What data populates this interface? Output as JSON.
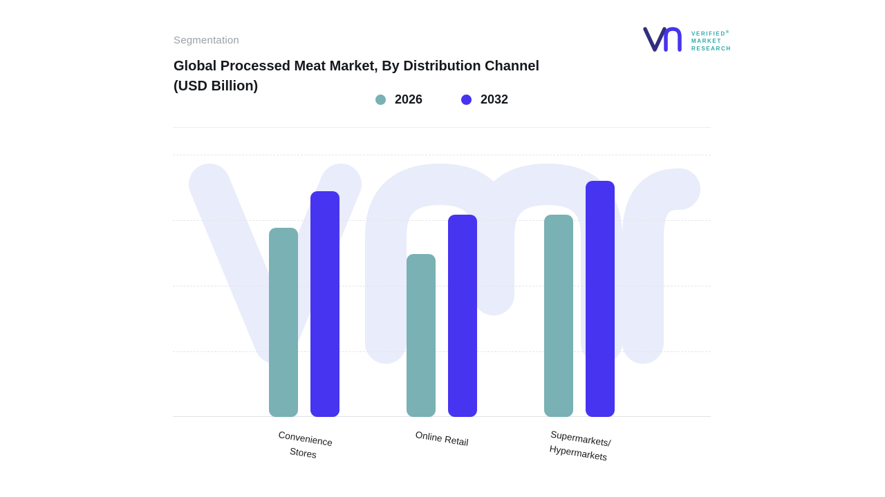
{
  "header": {
    "eyebrow": "Segmentation",
    "title": "Global Processed Meat Market, By Distribution Channel (USD Billion)"
  },
  "logo": {
    "lines": [
      "VERIFIED",
      "MARKET",
      "RESEARCH"
    ],
    "registered": "®",
    "text_color": "#2aa9ad",
    "mark_colors": {
      "v": "#312f7d",
      "arch": "#4733ee"
    }
  },
  "colors": {
    "series_2026": "#79b1b4",
    "series_2032": "#4634f0",
    "watermark": "#e9ecfa",
    "gridline": "#e4e6ea",
    "baseline": "#dfe2e6",
    "title_text": "#15181d",
    "eyebrow_text": "#9ba1a9"
  },
  "chart_data": {
    "type": "bar",
    "title": "Global Processed Meat Market, By Distribution Channel (USD Billion)",
    "xlabel": "Distribution Channel",
    "ylabel": "USD Billion",
    "categories": [
      "Convenience\nStores",
      "Online Retail",
      "Supermarkets/\nHypermarkets"
    ],
    "series": [
      {
        "name": "2026",
        "color": "#79b1b4",
        "values": [
          72,
          62,
          77
        ]
      },
      {
        "name": "2032",
        "color": "#4634f0",
        "values": [
          86,
          77,
          90
        ]
      }
    ],
    "ylim": [
      0,
      100
    ],
    "y_axis_labels_visible": false,
    "grid": "horizontal-dashed",
    "legend_position": "top-center",
    "note": "No numeric axis shown in source; values are relative estimates with tallest bar = 90."
  }
}
